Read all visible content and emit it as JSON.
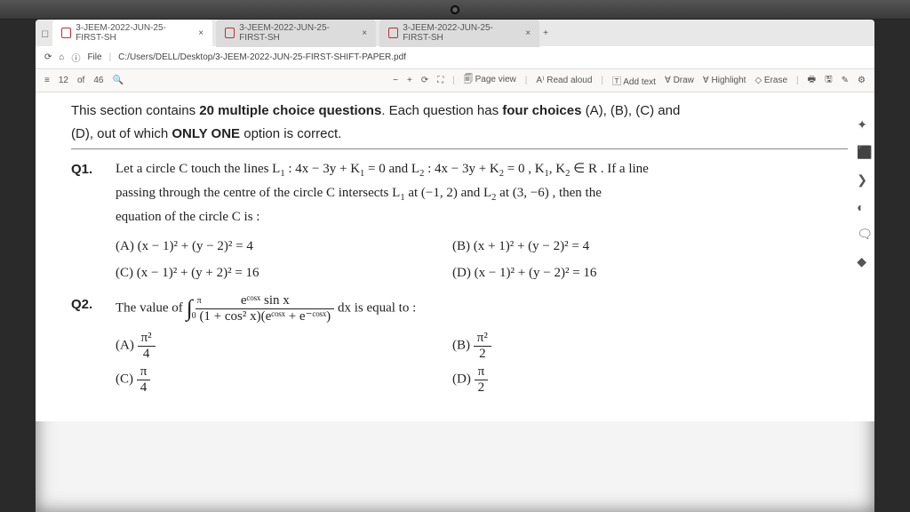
{
  "tabs": [
    {
      "label": "3-JEEM-2022-JUN-25-FIRST-SH",
      "active": true
    },
    {
      "label": "3-JEEM-2022-JUN-25-FIRST-SH",
      "active": false
    },
    {
      "label": "3-JEEM-2022-JUN-25-FIRST-SH",
      "active": false
    }
  ],
  "addtab": "+",
  "addr": {
    "file_label": "File",
    "path": "C:/Users/DELL/Desktop/3-JEEM-2022-JUN-25-FIRST-SHIFT-PAPER.pdf",
    "info_icon": "ⓘ"
  },
  "toolbar": {
    "menu_icon": "≡",
    "page_current": "12",
    "page_sep": "of",
    "page_total": "46",
    "search": "🔍",
    "zoom_out": "−",
    "zoom_in": "+",
    "rotate": "⟳",
    "fit": "⛶",
    "page_view": "🗐 Page view",
    "read_aloud": "A⁾ Read aloud",
    "add_text": "🅃 Add text",
    "draw": "∀ Draw",
    "highlight": "∀ Highlight",
    "erase": "◇ Erase",
    "print": "🖶",
    "save": "🖫",
    "share": "✎",
    "settings": "⚙"
  },
  "intro_line1": "This section contains ",
  "intro_bold1": "20 multiple choice questions",
  "intro_mid1": ". Each question has ",
  "intro_bold2": "four choices",
  "intro_tail1": " (A), (B), (C) and",
  "intro_line2_pre": "(D), out of which ",
  "intro_bold3": "ONLY ONE",
  "intro_line2_post": " option is correct.",
  "q1": {
    "num": "Q1.",
    "l1a": "Let a circle C touch the lines L",
    "l1b": " : 4x − 3y + K",
    "l1c": " = 0  and  L",
    "l1d": " : 4x − 3y + K",
    "l1e": " = 0 ,  K",
    "l1f": ", K",
    "l1g": " ∈ R . If a line",
    "l2a": "passing through the centre of the circle C intersects L",
    "l2b": " at  (−1, 2) and  L",
    "l2c": " at  (3, −6) ,  then the",
    "l3": "equation of the circle C is :",
    "a": "(A) (x − 1)² + (y − 2)² = 4",
    "b": "(B) (x + 1)² + (y − 2)² = 4",
    "c": "(C) (x − 1)² + (y + 2)² = 16",
    "d": "(D) (x − 1)² + (y − 2)² = 16"
  },
  "q2": {
    "num": "Q2.",
    "lead": "The value of ",
    "num_expr": "eᶜᵒˢˣ sin x",
    "den_expr": "(1 + cos² x)(eᶜᵒˢˣ + e⁻ᶜᵒˢˣ)",
    "tail": " dx is equal to :",
    "int_top": "π",
    "int_bot": "0",
    "a_num": "π²",
    "a_den": "4",
    "a_pre": "(A) ",
    "b_num": "π²",
    "b_den": "2",
    "b_pre": "(B) ",
    "c_num": "π",
    "c_den": "4",
    "c_pre": "(C) ",
    "d_num": "π",
    "d_den": "2",
    "d_pre": "(D) "
  },
  "right_icons": [
    "✦",
    "⬛",
    "❯",
    "◐",
    "🗨",
    "◆"
  ],
  "colors": {
    "background": "#2a2a2a",
    "screen": "#f4f4f4",
    "page": "#ffffff",
    "text": "#222222",
    "border": "#888888"
  }
}
